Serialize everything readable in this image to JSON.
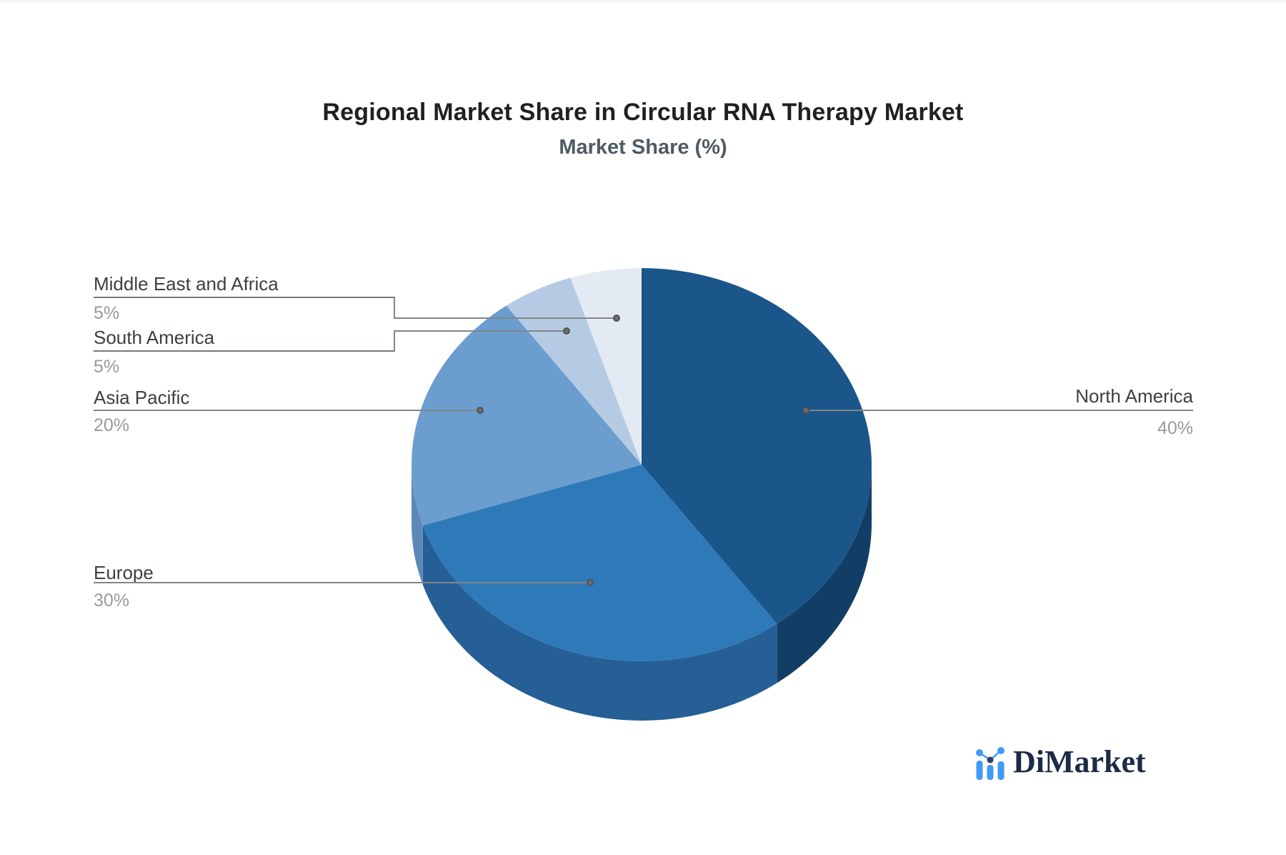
{
  "header": {
    "title": "Regional Market Share in Circular RNA Therapy Market",
    "subtitle": "Market Share (%)"
  },
  "chart_data": {
    "type": "pie",
    "style": "3d",
    "title": "Regional Market Share in Circular RNA Therapy Market",
    "subtitle": "Market Share (%)",
    "unit": "%",
    "start_angle_deg": 0,
    "direction": "clockwise",
    "legend": "none",
    "categories": [
      "North America",
      "Europe",
      "Asia Pacific",
      "South America",
      "Middle East and Africa"
    ],
    "values": [
      40,
      30,
      20,
      5,
      5
    ],
    "slices": [
      {
        "name": "North America",
        "value": 40,
        "pct_label": "40%",
        "color": "#1a568a",
        "side_color": "#123e66",
        "label_side": "right"
      },
      {
        "name": "Europe",
        "value": 30,
        "pct_label": "30%",
        "color": "#2e7ab9",
        "side_color": "#255f96",
        "label_side": "left"
      },
      {
        "name": "Asia Pacific",
        "value": 20,
        "pct_label": "20%",
        "color": "#6c9dcf",
        "side_color": "#5d89b8",
        "label_side": "left"
      },
      {
        "name": "South America",
        "value": 5,
        "pct_label": "5%",
        "color": "#b5cbe3",
        "side_color": "#9db4d2",
        "label_side": "left"
      },
      {
        "name": "Middle East and Africa",
        "value": 5,
        "pct_label": "5%",
        "color": "#e4eaf3",
        "side_color": "#c9d2e0",
        "label_side": "left"
      }
    ],
    "leader_style": {
      "line_color": "#828588",
      "dot_color": "#6f6f6f"
    }
  },
  "branding": {
    "logo_text": "DiMarket",
    "logo_icon": "bar-chart-logo-icon",
    "logo_text_color": "#1c2b46",
    "logo_bar_color": "#3f9bf5",
    "logo_dot_color": "#2c3e5d"
  }
}
